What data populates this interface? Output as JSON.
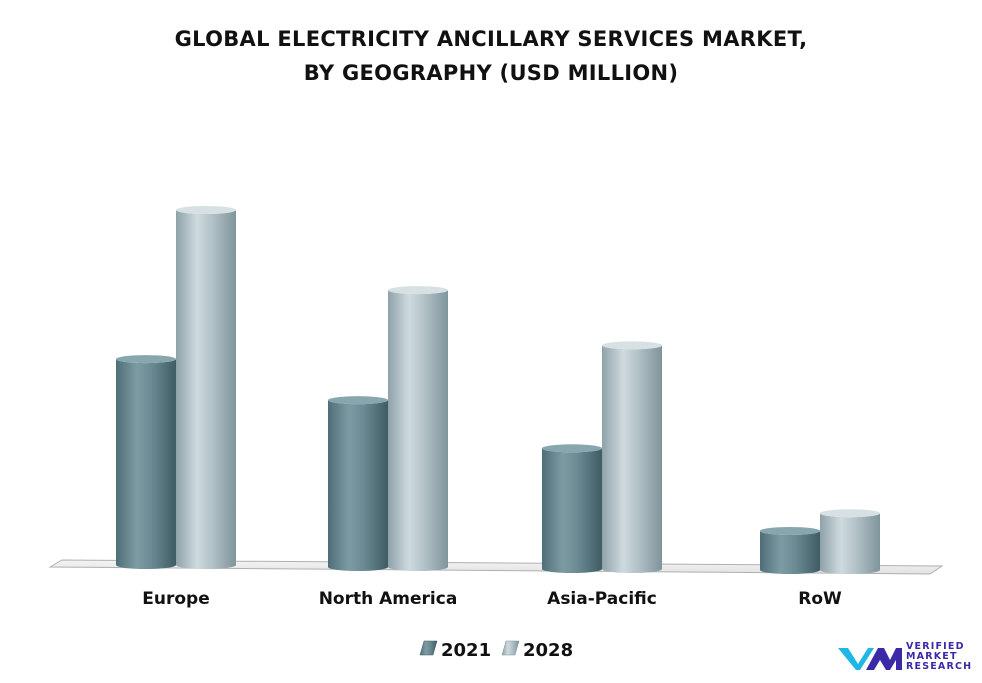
{
  "chart_data": {
    "type": "bar",
    "title_lines": [
      "GLOBAL ELECTRICITY ANCILLARY SERVICES MARKET,",
      "BY GEOGRAPHY (USD MILLION)"
    ],
    "categories": [
      "Europe",
      "North America",
      "Asia-Pacific",
      "RoW"
    ],
    "series": [
      {
        "name": "2021",
        "values": [
          58,
          47,
          34,
          11
        ]
      },
      {
        "name": "2028",
        "values": [
          100,
          78,
          63,
          16
        ]
      }
    ],
    "ylim": [
      0,
      100
    ],
    "grid": false,
    "legend": "bottom-center",
    "colors": {
      "2021": "#5b7f88",
      "2028": "#a3b5bb"
    }
  },
  "branding": {
    "logo_icon": "vmr-logo-icon",
    "logo_lines": [
      "VERIFIED",
      "MARKET",
      "RESEARCH"
    ],
    "logo_color": "#3b2aa8",
    "logo_mark_color": "#1fb7e6"
  }
}
